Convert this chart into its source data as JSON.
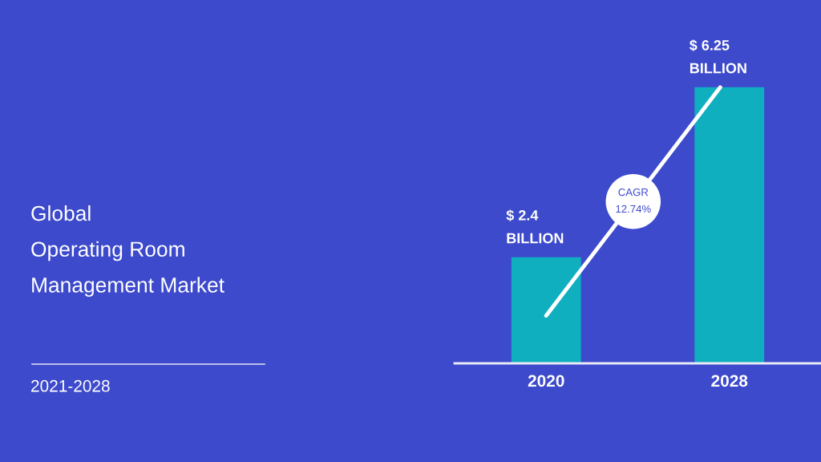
{
  "chart_data": {
    "type": "bar",
    "title": "Global\nOperating Room\nManagement Market",
    "subtitle": "2021-2028",
    "categories": [
      "2020",
      "2028"
    ],
    "values": [
      2.4,
      6.25
    ],
    "color": "#10afc0",
    "value_labels": [
      "$ 2.4\nBILLION",
      "$ 6.25\nBILLION"
    ],
    "annotations": [
      "CAGR\n12.74%"
    ]
  }
}
